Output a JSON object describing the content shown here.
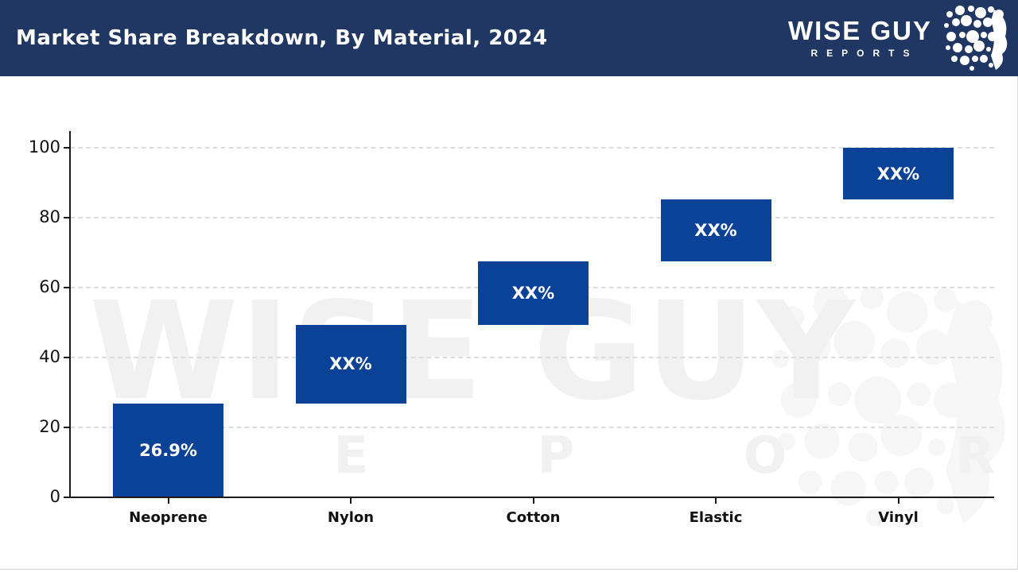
{
  "header": {
    "title": "Market Share Breakdown, By Material, 2024",
    "bg_color": "#203764",
    "logo": {
      "line1": "WISE GUY",
      "line2": "REPORTS"
    }
  },
  "watermark": {
    "line1": "WISE GUY",
    "line2": "REPORTS"
  },
  "chart_data": {
    "type": "bar",
    "subtype": "waterfall",
    "title": "Market Share Breakdown, By Material, 2024",
    "categories": [
      "Neoprene",
      "Nylon",
      "Cotton",
      "Elastic",
      "Vinyl"
    ],
    "segments": [
      {
        "category": "Neoprene",
        "start": 0,
        "end": 26.9,
        "label": "26.9%"
      },
      {
        "category": "Nylon",
        "start": 26.9,
        "end": 49.4,
        "label": "XX%"
      },
      {
        "category": "Cotton",
        "start": 49.4,
        "end": 67.4,
        "label": "XX%"
      },
      {
        "category": "Elastic",
        "start": 67.4,
        "end": 85.2,
        "label": "XX%"
      },
      {
        "category": "Vinyl",
        "start": 85.2,
        "end": 100,
        "label": "XX%"
      }
    ],
    "xlabel": "",
    "ylabel": "",
    "ylim": [
      0,
      100
    ],
    "yticks": [
      0,
      20,
      40,
      60,
      80,
      100
    ],
    "grid": "horizontal-dashed",
    "legend": "none",
    "bar_color": "#0A4298",
    "bar_label_color": "#ffffff",
    "axis_color": "#1a1a1a",
    "grid_color": "#dcdcdc"
  }
}
